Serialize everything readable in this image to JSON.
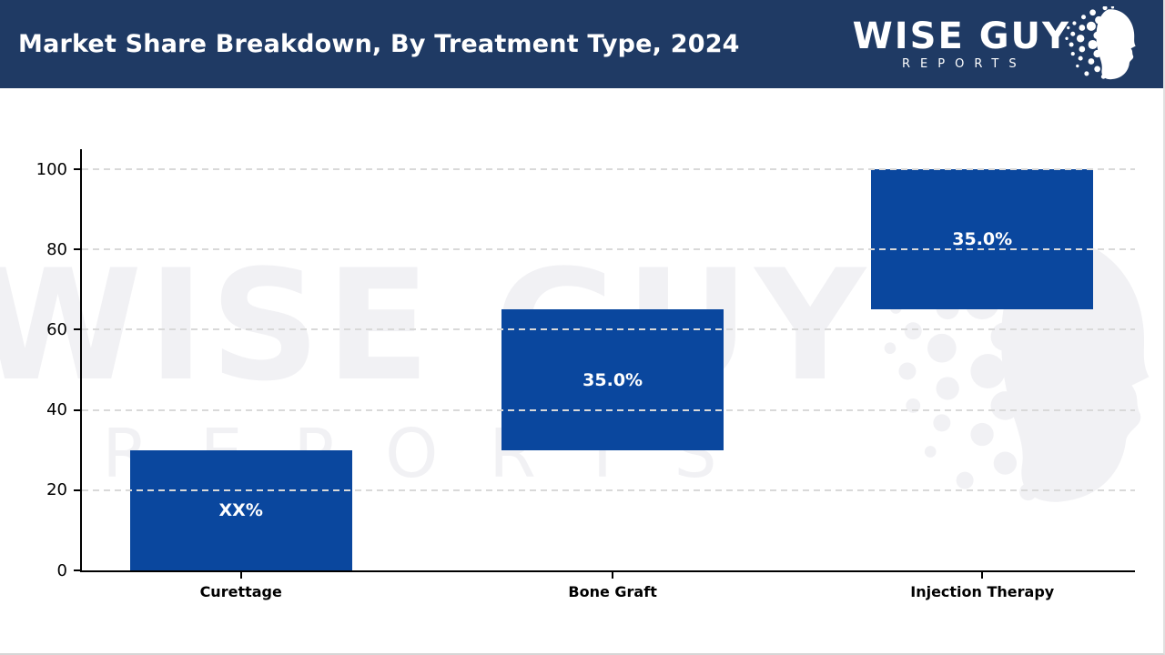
{
  "header": {
    "title": "Market Share Breakdown, By Treatment Type, 2024",
    "logo": {
      "primary": "WISE GUY",
      "secondary": "REPORTS"
    }
  },
  "watermark": {
    "primary": "WISE GUY",
    "secondary": "REPORTS"
  },
  "colors": {
    "header_bg": "#1f3a64",
    "bar": "#0a479e",
    "bar_label": "#ffffff",
    "grid": "#d9d9d9",
    "axis": "#000000",
    "watermark": "#f1f1f4"
  },
  "chart_data": {
    "type": "bar",
    "variant": "waterfall",
    "title": "Market Share Breakdown, By Treatment Type, 2024",
    "xlabel": "",
    "ylabel": "",
    "categories": [
      "Curettage",
      "Bone Graft",
      "Injection Therapy"
    ],
    "segments": [
      {
        "category": "Curettage",
        "start": 0,
        "end": 30,
        "label": "XX%"
      },
      {
        "category": "Bone Graft",
        "start": 30,
        "end": 65,
        "label": "35.0%"
      },
      {
        "category": "Injection Therapy",
        "start": 65,
        "end": 100,
        "label": "35.0%"
      }
    ],
    "yticks": [
      0,
      20,
      40,
      60,
      80,
      100
    ],
    "ylim": [
      0,
      105
    ],
    "grid": "horizontal-dashed",
    "grid_above_bars": true,
    "legend": "none",
    "layout": {
      "bar_centers_pct": [
        15.1,
        50.4,
        85.5
      ],
      "bar_width_pct": 21.1
    }
  }
}
